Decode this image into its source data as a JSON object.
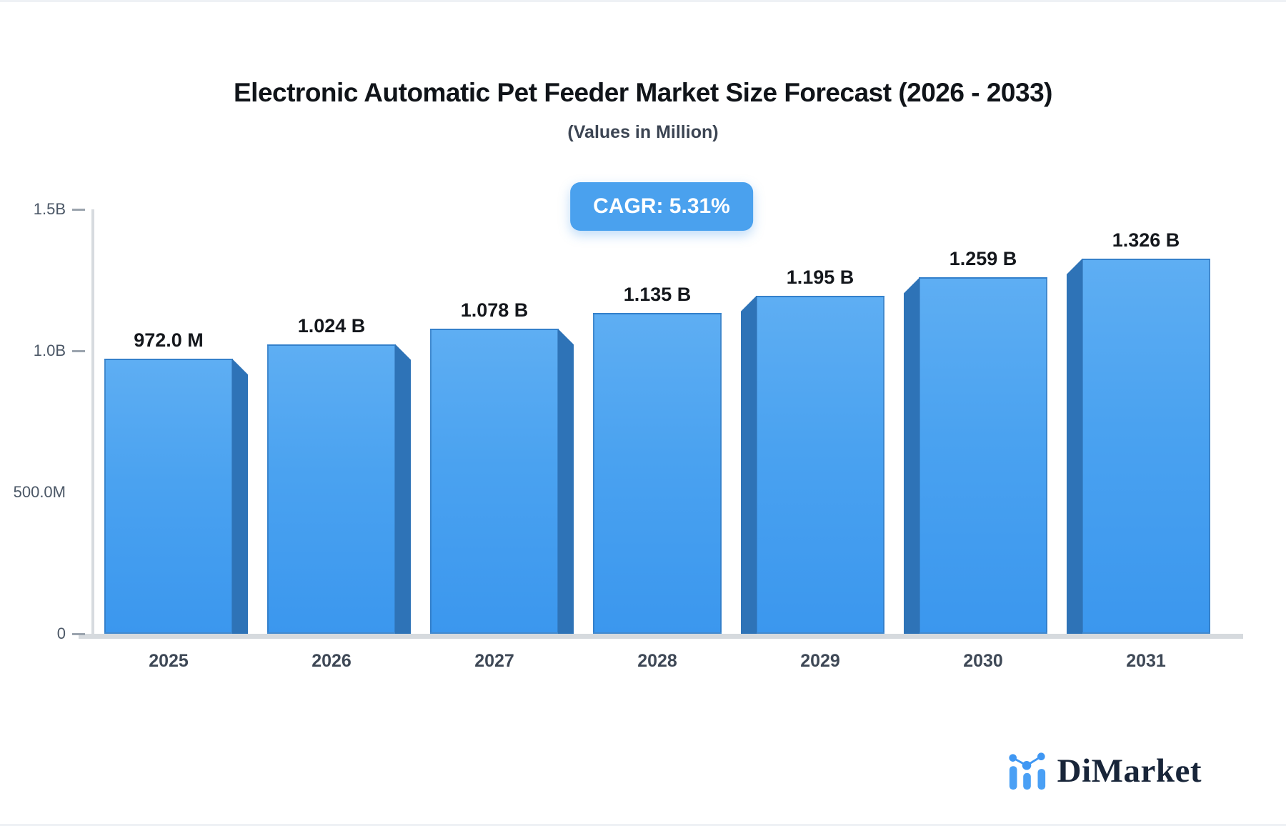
{
  "header": {
    "title": "Electronic Automatic Pet Feeder Market Size Forecast (2026 - 2033)",
    "subtitle": "(Values in Million)",
    "cagr_badge": "CAGR: 5.31%"
  },
  "chart_data": {
    "type": "bar",
    "title": "Electronic Automatic Pet Feeder Market Size Forecast (2026 - 2033)",
    "subtitle": "(Values in Million)",
    "categories": [
      "2025",
      "2026",
      "2027",
      "2028",
      "2029",
      "2030",
      "2031"
    ],
    "values_millions": [
      972.0,
      1024,
      1078,
      1135,
      1195,
      1259,
      1326
    ],
    "bar_labels": [
      "972.0 M",
      "1.024 B",
      "1.078 B",
      "1.135 B",
      "1.195 B",
      "1.259 B",
      "1.326 B"
    ],
    "y_ticks": [
      {
        "label": "1.5B",
        "value": 1500,
        "dash": true
      },
      {
        "label": "1.0B",
        "value": 1000,
        "dash": true
      },
      {
        "label": "500.0M",
        "value": 500,
        "dash": false
      },
      {
        "label": "0",
        "value": 0,
        "dash": true
      }
    ],
    "ylim": [
      0,
      1500
    ],
    "xlabel": "",
    "ylabel": "",
    "grid": "off",
    "legend": "none",
    "style_3d": "perspective toward center: left bars show right face, right bars show left face",
    "colors": {
      "bar_face": "#4aa2f0",
      "bar_side": "#2e73b7",
      "badge_bg": "#4aa1ee",
      "axis": "#d6dade",
      "label_text": "#14171c"
    }
  },
  "logo": {
    "text": "DiMarket",
    "icon": "bar-chart-logo-icon",
    "text_color": "#182539",
    "icon_color": "#3f97f3"
  }
}
